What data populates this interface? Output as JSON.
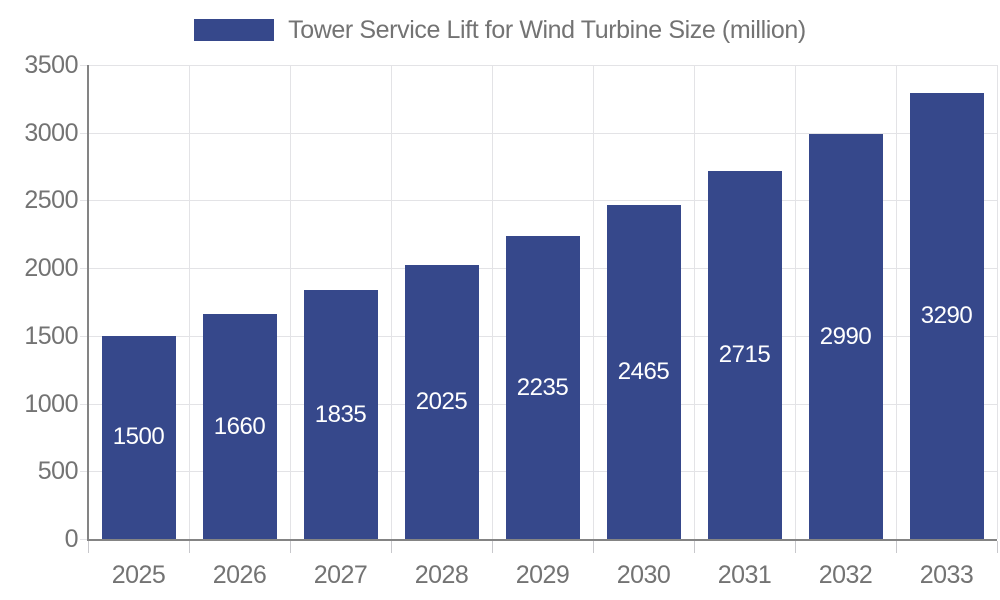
{
  "chart_data": {
    "type": "bar",
    "title": "Tower Service Lift for Wind Turbine Size (million)",
    "series_name": "Tower Service Lift for Wind Turbine Size (million)",
    "categories": [
      "2025",
      "2026",
      "2027",
      "2028",
      "2029",
      "2030",
      "2031",
      "2032",
      "2033"
    ],
    "values": [
      1500,
      1660,
      1835,
      2025,
      2235,
      2465,
      2715,
      2990,
      3290
    ],
    "xlabel": "",
    "ylabel": "",
    "ylim": [
      0,
      3500
    ],
    "ytick_interval": 500,
    "yticks": [
      0,
      500,
      1000,
      1500,
      2000,
      2500,
      3000,
      3500
    ],
    "grid": true,
    "legend_position": "top-center",
    "bar_label_position": "inside-center",
    "colors": {
      "bar": "#36488B",
      "bar_label": "#FFFFFF",
      "axis_line": "#848484",
      "grid_line": "#E3E3E6",
      "tick_line": "#C8C8CC",
      "axis_text": "#737373",
      "legend_text": "#737373",
      "background": "#FFFFFF"
    }
  }
}
